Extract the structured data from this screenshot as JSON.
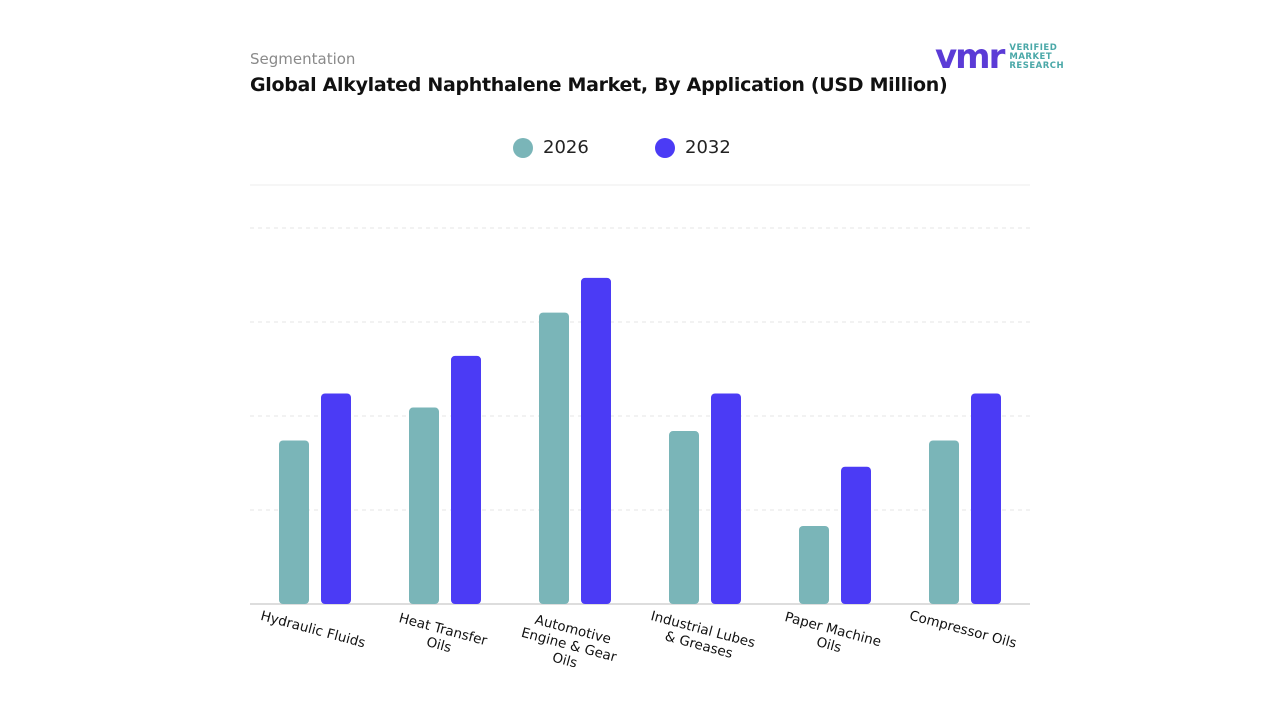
{
  "chart_data": {
    "type": "bar",
    "subtitle": "Segmentation",
    "title": "Global Alkylated Naphthalene Market, By Application (USD Million)",
    "logo": {
      "mark": "vmr",
      "lines": [
        "VERIFIED",
        "MARKET",
        "RESEARCH"
      ]
    },
    "categories": [
      "Hydraulic Fluids",
      "Heat Transfer Oils",
      "Automotive Engine & Gear Oils",
      "Industrial Lubes & Greases",
      "Paper Machine Oils",
      "Compressor Oils"
    ],
    "series": [
      {
        "name": "2026",
        "color": "#7ab5b8",
        "values": [
          1.74,
          2.09,
          3.1,
          1.84,
          0.83,
          1.74
        ]
      },
      {
        "name": "2032",
        "color": "#4b3bf5",
        "values": [
          2.24,
          2.64,
          3.47,
          2.24,
          1.46,
          2.24
        ]
      }
    ],
    "ylim": [
      0,
      4
    ],
    "yticks": [
      0,
      1,
      2,
      3,
      4
    ],
    "grid": true
  }
}
